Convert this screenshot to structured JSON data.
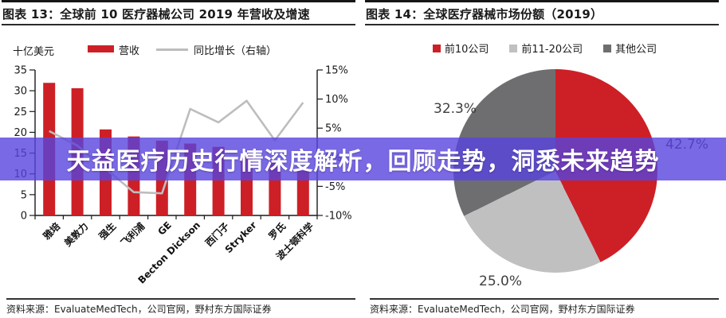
{
  "banner": {
    "text": "天益医疗历史行情深度解析，回顾走势，洞悉未来趋势",
    "bg_color": "rgba(88,68,221,0.8)",
    "text_color": "#ffffff"
  },
  "left_chart": {
    "title": "图表 13：全球前 10 医疗器械公司 2019 年营收及增速",
    "unit_label": "十亿美元",
    "legend": [
      {
        "label": "营收",
        "type": "bar",
        "color": "#CD2026"
      },
      {
        "label": "同比增长（右轴）",
        "type": "line",
        "color": "#BDBDBD"
      }
    ],
    "source": "资料来源：EvaluateMedTech，公司官网，野村东方国际证券",
    "chart_data": {
      "type": "bar+line",
      "categories": [
        "雅培",
        "美敦力",
        "强生",
        "飞利浦",
        "GE",
        "Becton Dickson",
        "西门子",
        "Stryker",
        "罗氏",
        "波士顿科学"
      ],
      "series": [
        {
          "name": "营收",
          "type": "bar",
          "axis": "left",
          "color": "#CD2026",
          "values": [
            31.9,
            30.6,
            20.7,
            19.0,
            18.0,
            17.3,
            16.5,
            14.9,
            12.9,
            10.7
          ]
        },
        {
          "name": "同比增长（右轴）",
          "type": "line",
          "axis": "right",
          "color": "#BDBDBD",
          "values": [
            4.5,
            2.0,
            -2.0,
            -6.0,
            -6.2,
            8.3,
            6.0,
            9.7,
            2.9,
            9.4
          ]
        }
      ],
      "left_axis": {
        "label": "十亿美元",
        "min": 0,
        "max": 35,
        "ticks": [
          0,
          5,
          10,
          15,
          20,
          25,
          30,
          35
        ]
      },
      "right_axis": {
        "label": "同比增长",
        "min": -10,
        "max": 15,
        "ticks": [
          -10,
          -5,
          0,
          5,
          10,
          15
        ],
        "suffix": "%"
      },
      "grid": false
    }
  },
  "right_chart": {
    "title": "图表 14：全球医疗器械市场份额（2019）",
    "legend": [
      {
        "label": "前10公司",
        "color": "#CD2026"
      },
      {
        "label": "前11-20公司",
        "color": "#C0C0C1"
      },
      {
        "label": "其他公司",
        "color": "#6E6E70"
      }
    ],
    "source": "资料来源：EvaluateMedTech，公司官网，野村东方国际证券",
    "chart_data": {
      "type": "pie",
      "start_angle_deg": 0,
      "direction": "clockwise",
      "slices": [
        {
          "label": "前10公司",
          "value": 42.7,
          "display": "42.7%",
          "color": "#CD2026"
        },
        {
          "label": "前11-20公司",
          "value": 25.0,
          "display": "25.0%",
          "color": "#C0C0C1"
        },
        {
          "label": "其他公司",
          "value": 32.3,
          "display": "32.3%",
          "color": "#6E6E70"
        }
      ]
    }
  }
}
